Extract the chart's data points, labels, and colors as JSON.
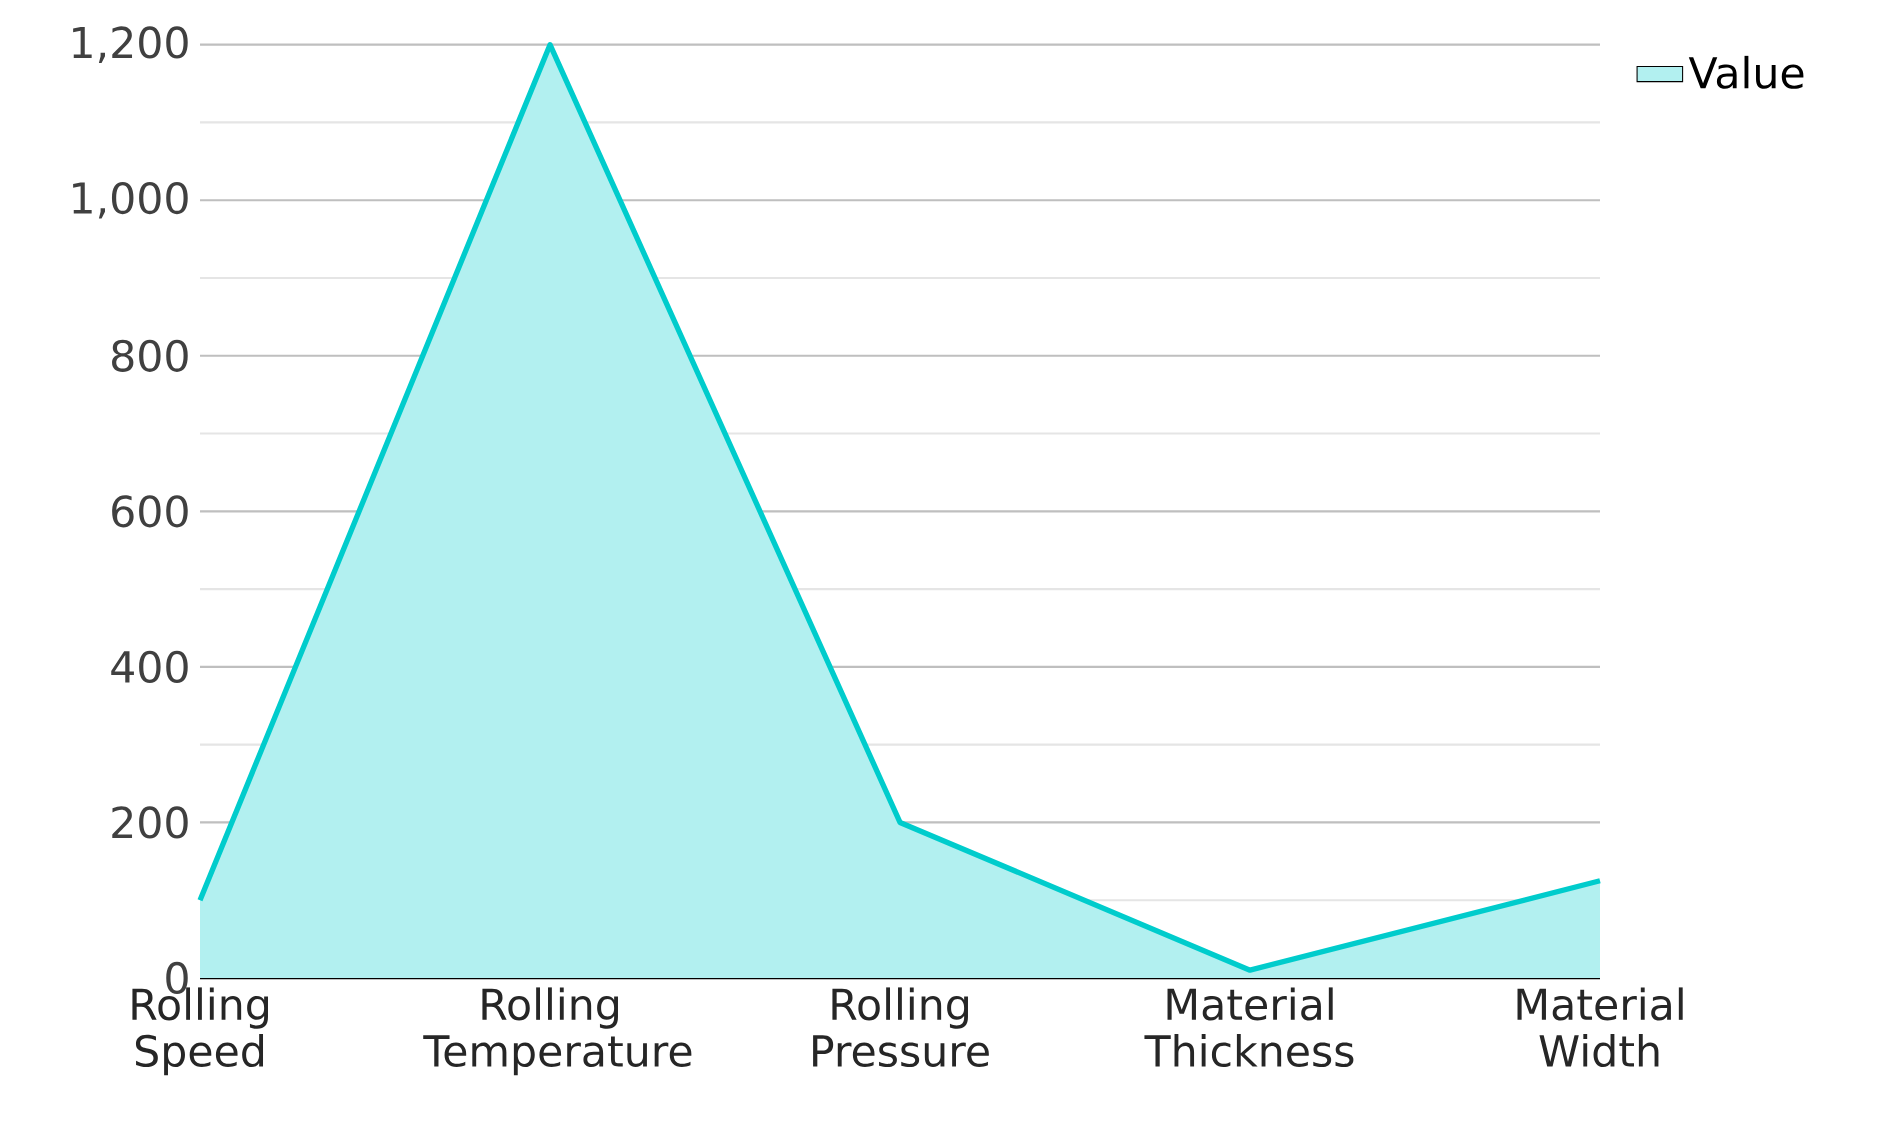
{
  "chart_data": {
    "type": "area",
    "categories": [
      "Rolling Speed",
      "Rolling Temperature",
      "Rolling Pressure",
      "Material Thickness",
      "Material Width"
    ],
    "series": [
      {
        "name": "Value",
        "color": "#00cccc",
        "values": [
          100,
          1200,
          200,
          10,
          125
        ]
      }
    ],
    "ylim": [
      0,
      1200
    ],
    "yticks": [
      0,
      200,
      400,
      600,
      800,
      {
        "value": 1000,
        "label": "1,000"
      },
      {
        "value": 1200,
        "label": "1,200"
      }
    ],
    "grid": "y",
    "legend": "top right"
  }
}
